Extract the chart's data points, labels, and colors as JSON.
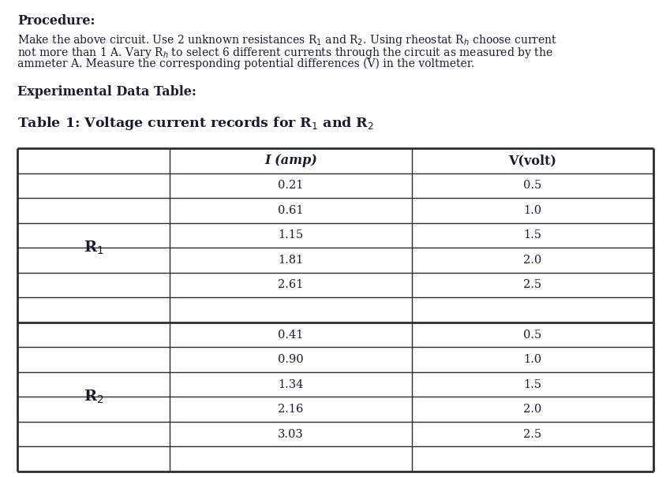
{
  "procedure_title": "Procedure:",
  "proc_line1": "Make the above circuit. Use 2 unknown resistances R$_1$ and R$_2$. Using rheostat R$_h$ choose current",
  "proc_line2": "not more than 1 A. Vary R$_h$ to select 6 different currents through the circuit as measured by the",
  "proc_line3": "ammeter A. Measure the corresponding potential differences (V) in the voltmeter.",
  "exp_data_title": "Experimental Data Table:",
  "table_title": "Table 1: Voltage current records for R$_1$ and R$_2$",
  "col_header1": "I (amp)",
  "col_header2": "V(volt)",
  "r1_label": "R$_1$",
  "r2_label": "R$_2$",
  "r1_currents": [
    "0.21",
    "0.61",
    "1.15",
    "1.81",
    "2.61",
    ""
  ],
  "r1_volts": [
    "0.5",
    "1.0",
    "1.5",
    "2.0",
    "2.5",
    ""
  ],
  "r2_currents": [
    "0.41",
    "0.90",
    "1.34",
    "2.16",
    "3.03",
    ""
  ],
  "r2_volts": [
    "0.5",
    "1.0",
    "1.5",
    "2.0",
    "2.5",
    ""
  ],
  "bg_color": "#ffffff",
  "text_color": "#1a1a2e",
  "border_color": "#2d2d2d",
  "font_family": "DejaVu Serif",
  "proc_fontsize": 10.0,
  "proc_title_fontsize": 11.5,
  "exp_title_fontsize": 11.5,
  "table_title_fontsize": 12.5,
  "header_fontsize": 11.5,
  "data_fontsize": 10.5,
  "label_fontsize": 14.0
}
